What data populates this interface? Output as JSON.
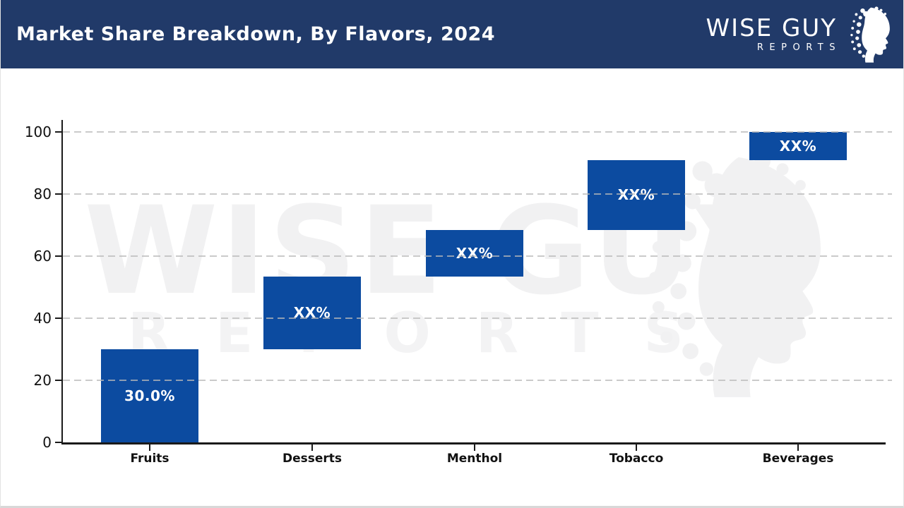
{
  "header": {
    "title": "Market Share Breakdown, By Flavors, 2024",
    "brand": {
      "line1": "WISE GUY",
      "line2": "REPORTS"
    }
  },
  "watermark": {
    "line1": "WISE GUY",
    "line2": "REPORTS"
  },
  "chart_data": {
    "type": "bar",
    "subtype": "waterfall",
    "title": "Market Share Breakdown, By Flavors, 2024",
    "categories": [
      "Fruits",
      "Desserts",
      "Menthol",
      "Tobacco",
      "Beverages"
    ],
    "segments": [
      {
        "category": "Fruits",
        "start": 0,
        "end": 30,
        "label": "30.0%"
      },
      {
        "category": "Desserts",
        "start": 30,
        "end": 53.5,
        "label": "XX%"
      },
      {
        "category": "Menthol",
        "start": 53.5,
        "end": 68.5,
        "label": "XX%"
      },
      {
        "category": "Tobacco",
        "start": 68.5,
        "end": 91,
        "label": "XX%"
      },
      {
        "category": "Beverages",
        "start": 91,
        "end": 100,
        "label": "XX%"
      }
    ],
    "xlabel": "",
    "ylabel": "",
    "ylim": [
      0,
      100
    ],
    "yticks": [
      0,
      20,
      40,
      60,
      80,
      100
    ],
    "grid": "dashed-horizontal",
    "legend": "none",
    "colors": {
      "bar": "#0c4ba0",
      "header_bg": "#213a69",
      "grid": "#c9c9c9",
      "axis": "#1a1a1a",
      "bar_label": "#ffffff",
      "watermark": "#f1f1f2"
    }
  }
}
